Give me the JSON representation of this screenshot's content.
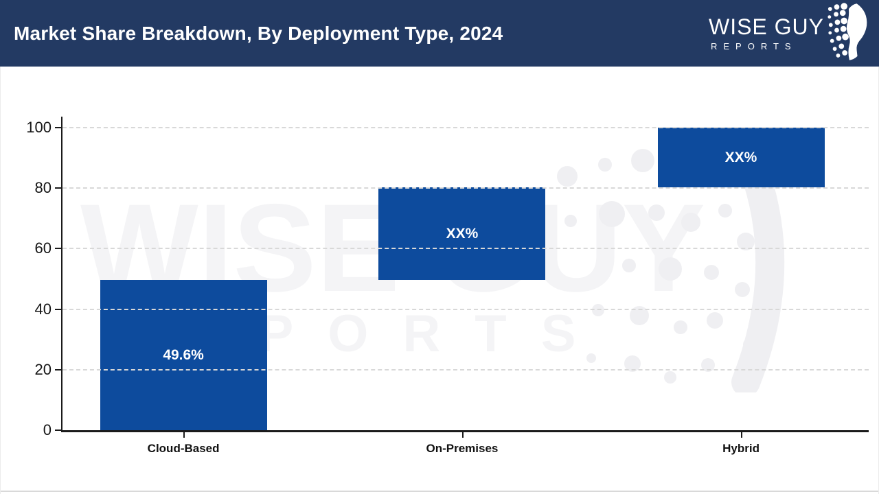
{
  "header": {
    "title": "Market Share Breakdown, By Deployment Type, 2024",
    "background_color": "#233A63",
    "logo": {
      "name": "WISE GUY",
      "tagline": "REPORTS"
    }
  },
  "watermark": {
    "line1": "WISE GUY",
    "line2": "REPORTS"
  },
  "chart_data": {
    "type": "bar",
    "subtype": "waterfall-percentage",
    "title": "Market Share Breakdown, By Deployment Type, 2024",
    "categories": [
      "Cloud-Based",
      "On-Premises",
      "Hybrid"
    ],
    "segments": [
      {
        "category": "Cloud-Based",
        "start": 0,
        "end": 49.6,
        "label": "49.6%"
      },
      {
        "category": "On-Premises",
        "start": 49.6,
        "end": 80.2,
        "label": "XX%"
      },
      {
        "category": "Hybrid",
        "start": 80.2,
        "end": 100,
        "label": "XX%"
      }
    ],
    "yticks": [
      0,
      20,
      40,
      60,
      80,
      100
    ],
    "ylim": [
      0,
      100
    ],
    "xlabel": "",
    "ylabel": "",
    "grid": "horizontal-dashed",
    "legend": "none",
    "bar_color": "#0D4B9D",
    "bar_label_color": "#FFFFFF"
  }
}
